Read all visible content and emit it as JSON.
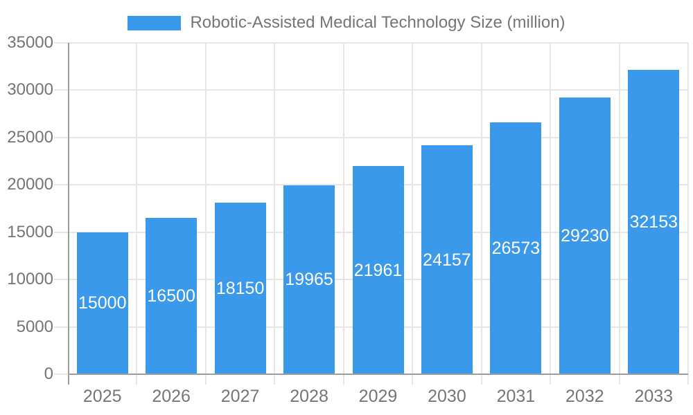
{
  "chart_data": {
    "type": "bar",
    "title": "",
    "xlabel": "",
    "ylabel": "",
    "categories": [
      "2025",
      "2026",
      "2027",
      "2028",
      "2029",
      "2030",
      "2031",
      "2032",
      "2033"
    ],
    "series": [
      {
        "name": "Robotic-Assisted Medical Technology Size (million)",
        "values": [
          15000,
          16500,
          18150,
          19965,
          21961,
          24157,
          26573,
          29230,
          32153
        ]
      }
    ],
    "data_labels_shown": true,
    "legend_entries": [
      "Robotic-Assisted Medical Technology Size (million)"
    ],
    "legend_position": "top-center",
    "ylim": [
      0,
      35000
    ],
    "yticks": [
      0,
      5000,
      10000,
      15000,
      20000,
      25000,
      30000,
      35000
    ],
    "grid": true,
    "colors": {
      "bar": "#3B99EC",
      "bar_label_text": "#FFFFFF",
      "axis_text": "#757575",
      "grid_line": "#E6E6E6",
      "axis_line": "#9C9C9C",
      "background": "#FFFFFF"
    }
  }
}
